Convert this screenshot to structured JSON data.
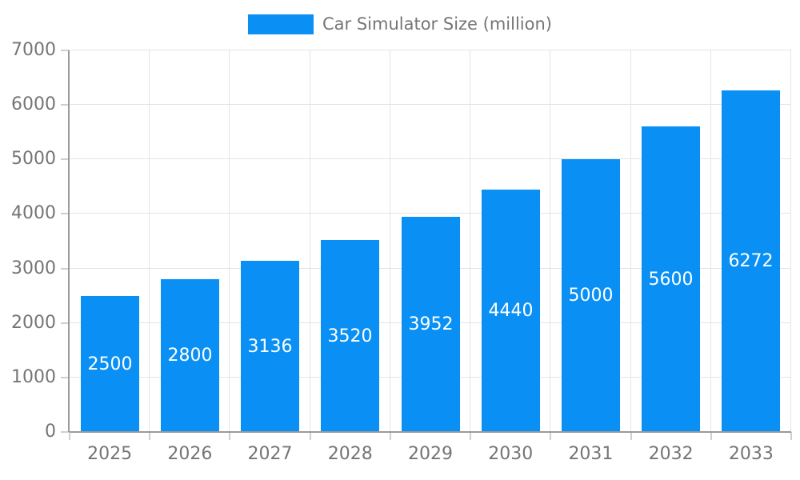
{
  "chart_data": {
    "type": "bar",
    "title": "Car Simulator Size (million)",
    "categories": [
      "2025",
      "2026",
      "2027",
      "2028",
      "2029",
      "2030",
      "2031",
      "2032",
      "2033"
    ],
    "values": [
      2500,
      2800,
      3136,
      3520,
      3952,
      4440,
      5000,
      5600,
      6272
    ],
    "xlabel": "",
    "ylabel": "",
    "ylim": [
      0,
      7000
    ],
    "y_ticks": [
      0,
      1000,
      2000,
      3000,
      4000,
      5000,
      6000,
      7000
    ],
    "grid": true,
    "legend_position": "top-center",
    "value_label_position": "inside-center"
  },
  "colors": {
    "bar": "#0a90f5",
    "value_label": "#ffffff",
    "axis_text": "#757575",
    "grid": "#e4e4e4",
    "tick": "#cfcfcf",
    "axis_line": "#9a9a9a",
    "background": "#ffffff"
  }
}
